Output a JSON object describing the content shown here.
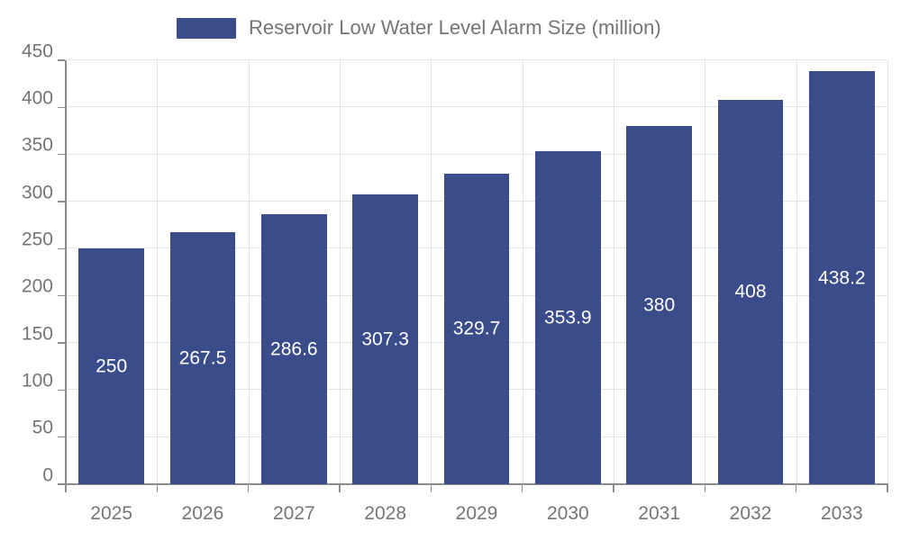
{
  "chart_data": {
    "type": "bar",
    "legend": "Reservoir Low Water Level Alarm Size (million)",
    "categories": [
      "2025",
      "2026",
      "2027",
      "2028",
      "2029",
      "2030",
      "2031",
      "2032",
      "2033"
    ],
    "values": [
      250,
      267.5,
      286.6,
      307.3,
      329.7,
      353.9,
      380,
      408,
      438.2
    ],
    "value_labels": [
      "250",
      "267.5",
      "286.6",
      "307.3",
      "329.7",
      "353.9",
      "380",
      "408",
      "438.2"
    ],
    "xlabel": "",
    "ylabel": "",
    "ylim": [
      0,
      450
    ],
    "ytick_step": 50,
    "ytick_labels": [
      "0",
      "50",
      "100",
      "150",
      "200",
      "250",
      "300",
      "350",
      "400",
      "450"
    ],
    "grid": true,
    "legend_position": "top",
    "value_label_position": "inside-center"
  },
  "colors": {
    "bar": "#3A4C8A",
    "grid": "#e4e4e4",
    "axis": "#8c8c8c",
    "tick": "#8c8c8c",
    "axis_label": "#757575",
    "legend_text": "#757575",
    "value_label": "#ffffff",
    "background": "#ffffff"
  }
}
